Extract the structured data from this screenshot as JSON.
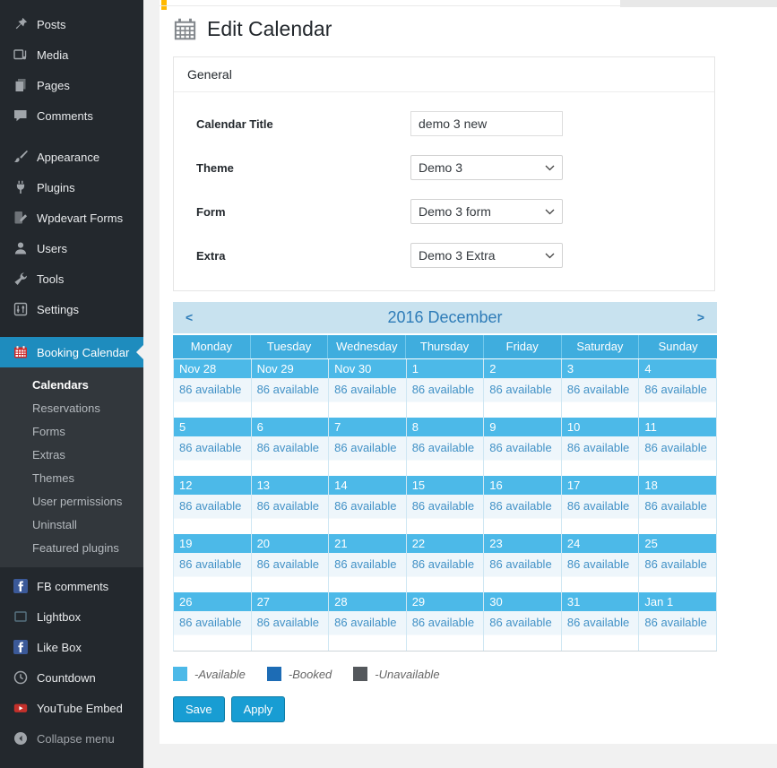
{
  "page": {
    "title": "Edit Calendar"
  },
  "sidebar": {
    "top_items": [
      {
        "label": "Posts",
        "icon": "pushpin-icon"
      },
      {
        "label": "Media",
        "icon": "media-icon"
      },
      {
        "label": "Pages",
        "icon": "pages-icon"
      },
      {
        "label": "Comments",
        "icon": "comment-bubble-icon"
      },
      {
        "label": "Appearance",
        "icon": "brush-icon",
        "gap": true
      },
      {
        "label": "Plugins",
        "icon": "plug-icon"
      },
      {
        "label": "Wpdevart Forms",
        "icon": "form-pencil-icon"
      },
      {
        "label": "Users",
        "icon": "user-icon"
      },
      {
        "label": "Tools",
        "icon": "wrench-icon"
      },
      {
        "label": "Settings",
        "icon": "settings-sliders-icon"
      }
    ],
    "booking": {
      "label": "Booking Calendar",
      "icon": "booking-calendar-icon"
    },
    "booking_submenu": [
      {
        "label": "Calendars",
        "active": true
      },
      {
        "label": "Reservations"
      },
      {
        "label": "Forms"
      },
      {
        "label": "Extras"
      },
      {
        "label": "Themes"
      },
      {
        "label": "User permissions"
      },
      {
        "label": "Uninstall"
      },
      {
        "label": "Featured plugins"
      }
    ],
    "plugin_items": [
      {
        "label": "FB comments",
        "icon": "facebook-icon"
      },
      {
        "label": "Lightbox",
        "icon": "lightbox-icon"
      },
      {
        "label": "Like Box",
        "icon": "facebook-icon"
      },
      {
        "label": "Countdown",
        "icon": "clock-icon"
      },
      {
        "label": "YouTube Embed",
        "icon": "youtube-icon"
      }
    ],
    "collapse": {
      "label": "Collapse menu",
      "icon": "collapse-arrow-icon"
    }
  },
  "general": {
    "section_title": "General",
    "fields": [
      {
        "label": "Calendar Title",
        "type": "input",
        "value": "demo 3 new"
      },
      {
        "label": "Theme",
        "type": "select",
        "value": "Demo 3"
      },
      {
        "label": "Form",
        "type": "select",
        "value": "Demo 3 form"
      },
      {
        "label": "Extra",
        "type": "select",
        "value": "Demo 3 Extra"
      }
    ]
  },
  "calendar": {
    "prev": "<",
    "next": ">",
    "title": "2016 December",
    "weekdays": [
      "Monday",
      "Tuesday",
      "Wednesday",
      "Thursday",
      "Friday",
      "Saturday",
      "Sunday"
    ],
    "weeks": [
      [
        {
          "date": "Nov 28",
          "availability": "86 available"
        },
        {
          "date": "Nov 29",
          "availability": "86 available"
        },
        {
          "date": "Nov 30",
          "availability": "86 available"
        },
        {
          "date": "1",
          "availability": "86 available"
        },
        {
          "date": "2",
          "availability": "86 available"
        },
        {
          "date": "3",
          "availability": "86 available"
        },
        {
          "date": "4",
          "availability": "86 available"
        }
      ],
      [
        {
          "date": "5",
          "availability": "86 available"
        },
        {
          "date": "6",
          "availability": "86 available"
        },
        {
          "date": "7",
          "availability": "86 available"
        },
        {
          "date": "8",
          "availability": "86 available"
        },
        {
          "date": "9",
          "availability": "86 available"
        },
        {
          "date": "10",
          "availability": "86 available"
        },
        {
          "date": "11",
          "availability": "86 available"
        }
      ],
      [
        {
          "date": "12",
          "availability": "86 available"
        },
        {
          "date": "13",
          "availability": "86 available"
        },
        {
          "date": "14",
          "availability": "86 available"
        },
        {
          "date": "15",
          "availability": "86 available"
        },
        {
          "date": "16",
          "availability": "86 available"
        },
        {
          "date": "17",
          "availability": "86 available"
        },
        {
          "date": "18",
          "availability": "86 available"
        }
      ],
      [
        {
          "date": "19",
          "availability": "86 available"
        },
        {
          "date": "20",
          "availability": "86 available"
        },
        {
          "date": "21",
          "availability": "86 available"
        },
        {
          "date": "22",
          "availability": "86 available"
        },
        {
          "date": "23",
          "availability": "86 available"
        },
        {
          "date": "24",
          "availability": "86 available"
        },
        {
          "date": "25",
          "availability": "86 available"
        }
      ],
      [
        {
          "date": "26",
          "availability": "86 available"
        },
        {
          "date": "27",
          "availability": "86 available"
        },
        {
          "date": "28",
          "availability": "86 available"
        },
        {
          "date": "29",
          "availability": "86 available"
        },
        {
          "date": "30",
          "availability": "86 available"
        },
        {
          "date": "31",
          "availability": "86 available"
        },
        {
          "date": "Jan 1",
          "availability": "86 available"
        }
      ]
    ]
  },
  "legend": [
    {
      "label": "-Available",
      "color": "#4cb9e8"
    },
    {
      "label": "-Booked",
      "color": "#1d6cb5"
    },
    {
      "label": "-Unavailable",
      "color": "#54585c"
    }
  ],
  "actions": {
    "save": "Save",
    "apply": "Apply"
  },
  "colors": {
    "active_menu": "#1e8cbe",
    "calendar_header": "#3fadde",
    "calendar_date_strip": "#4cb9e8",
    "calendar_nav_bg": "#c8e2ef",
    "button": "#189dd3",
    "notice_marker": "#ffb900"
  }
}
